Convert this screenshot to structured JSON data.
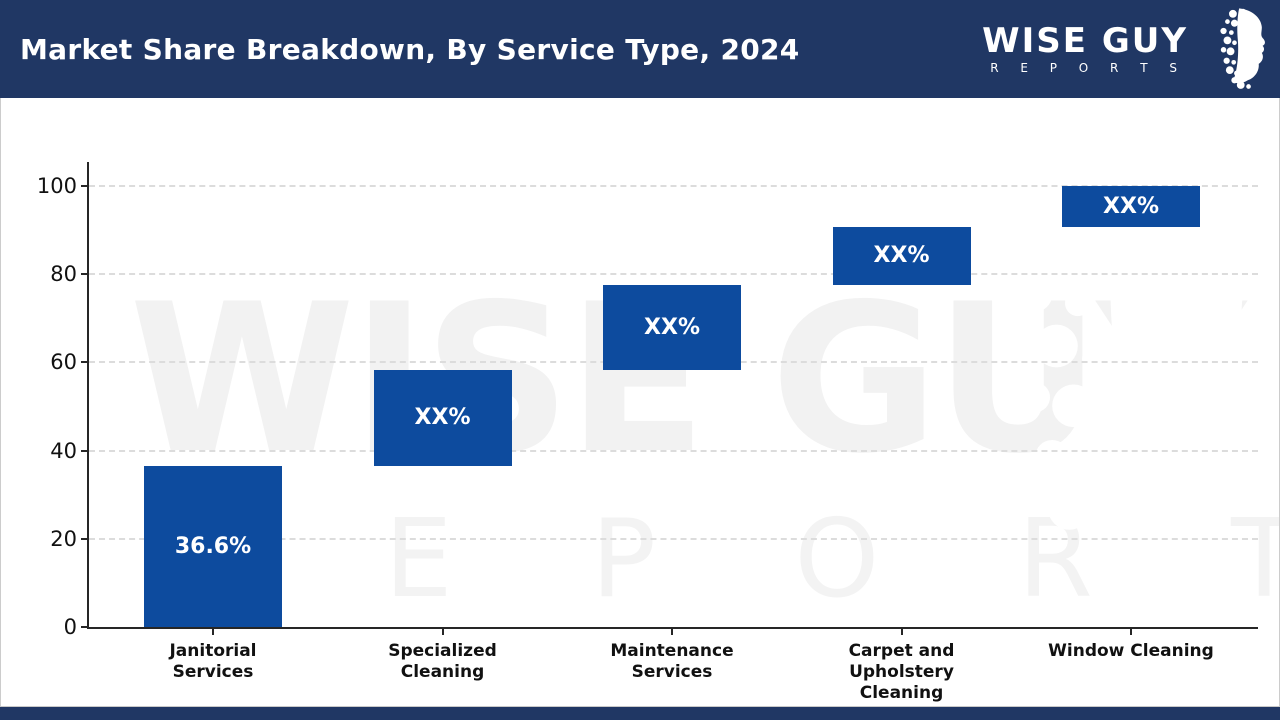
{
  "header": {
    "title": "Market Share Breakdown, By Service Type, 2024",
    "bg_color": "#203764",
    "logo": {
      "line1": "WISE GUY",
      "line2": "R E P O R T S"
    }
  },
  "watermark": {
    "line1": "WISE GUY",
    "line2": "R E P O R T S"
  },
  "chart_data": {
    "type": "bar",
    "subtype": "waterfall",
    "title": "Market Share Breakdown, By Service Type, 2024",
    "categories": [
      [
        "Janitorial",
        "Services"
      ],
      [
        "Specialized",
        "Cleaning"
      ],
      [
        "Maintenance",
        "Services"
      ],
      [
        "Carpet and",
        "Upholstery",
        "Cleaning"
      ],
      [
        "Window Cleaning"
      ]
    ],
    "segments": [
      {
        "label": "36.6%",
        "start": 0,
        "end": 36.6
      },
      {
        "label": "XX%",
        "start": 36.6,
        "end": 58.2
      },
      {
        "label": "XX%",
        "start": 58.2,
        "end": 77.6
      },
      {
        "label": "XX%",
        "start": 77.6,
        "end": 90.7
      },
      {
        "label": "XX%",
        "start": 90.7,
        "end": 100
      }
    ],
    "y_ticks": [
      0,
      20,
      40,
      60,
      80,
      100
    ],
    "ylim": [
      0,
      105
    ],
    "xlabel": "",
    "ylabel": "",
    "grid": "dashed-horizontal",
    "legend": "none",
    "bar_color": "#0D4B9E",
    "bar_label_color": "#ffffff"
  }
}
